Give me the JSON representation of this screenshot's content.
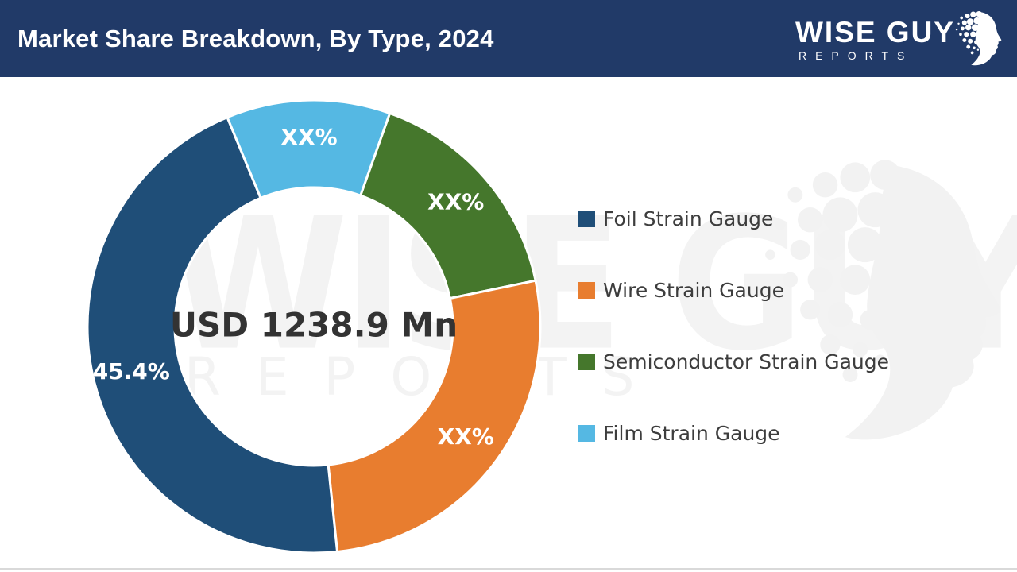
{
  "header": {
    "title": "Market Share Breakdown, By Type, 2024",
    "bg_color": "#213a68",
    "logo": {
      "line1": "WISE GUY",
      "line2": "REPORTS"
    }
  },
  "watermark": {
    "line1": "WISE GUY",
    "line2": "REPORTS"
  },
  "chart_data": {
    "type": "pie",
    "subtype": "donut",
    "title": "Market Share Breakdown, By Type, 2024",
    "center_label": "USD 1238.9 Mn",
    "start_angle_deg": 112.5,
    "direction": "clockwise",
    "legend_position": "right",
    "segments": [
      {
        "name": "Foil Strain Gauge",
        "value_pct": 45.4,
        "display_label": "45.4%",
        "color": "#1f4e78"
      },
      {
        "name": "Wire Strain Gauge",
        "value_pct": 26.6,
        "display_label": "XX%",
        "color": "#e87d2f"
      },
      {
        "name": "Semiconductor Strain Gauge",
        "value_pct": 16.3,
        "display_label": "XX%",
        "color": "#45772c"
      },
      {
        "name": "Film Strain Gauge",
        "value_pct": 11.7,
        "display_label": "XX%",
        "color": "#55b8e3"
      }
    ]
  }
}
